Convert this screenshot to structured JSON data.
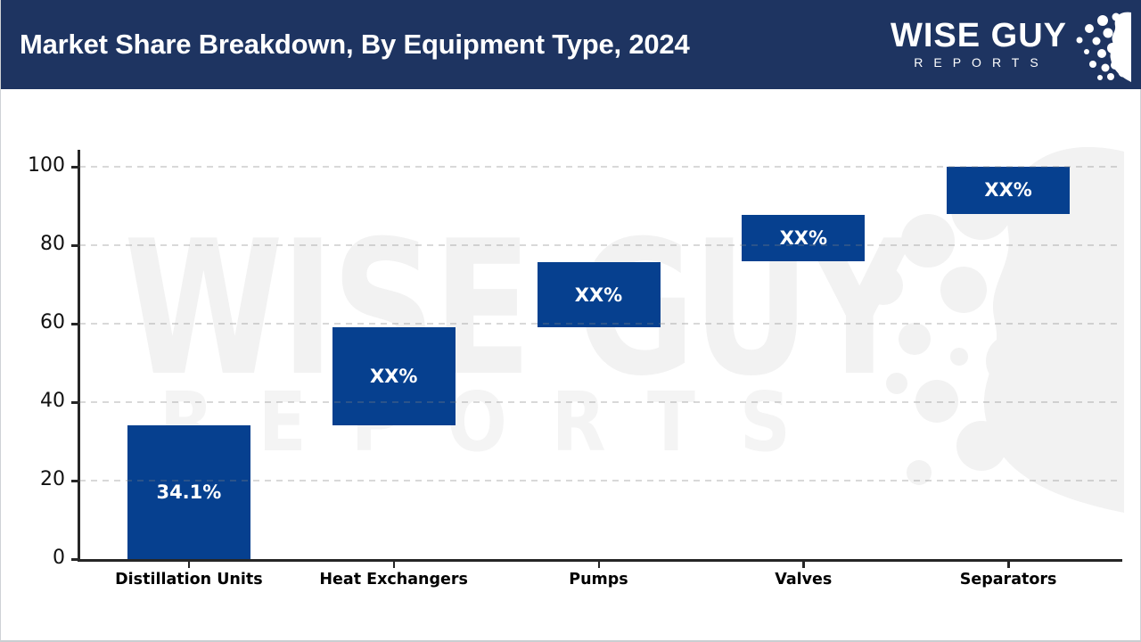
{
  "header": {
    "title": "Market Share Breakdown, By Equipment Type, 2024",
    "bg_color": "#1e3461",
    "logo": {
      "line1": "WISE GUY",
      "line2": "REPORTS"
    }
  },
  "watermark": {
    "line1": "WISE GUY",
    "line2": "REPORTS"
  },
  "chart_data": {
    "type": "bar",
    "subtype": "waterfall",
    "title": "Market Share Breakdown, By Equipment Type, 2024",
    "categories": [
      "Distillation Units",
      "Heat Exchangers",
      "Pumps",
      "Valves",
      "Separators"
    ],
    "segments": [
      {
        "category": "Distillation Units",
        "start": 0,
        "end": 34.1,
        "label": "34.1%"
      },
      {
        "category": "Heat Exchangers",
        "start": 34.1,
        "end": 59.0,
        "label": "XX%"
      },
      {
        "category": "Pumps",
        "start": 59.0,
        "end": 75.7,
        "label": "XX%"
      },
      {
        "category": "Valves",
        "start": 75.9,
        "end": 87.7,
        "label": "XX%"
      },
      {
        "category": "Separators",
        "start": 88.0,
        "end": 100.0,
        "label": "XX%"
      }
    ],
    "y_ticks": [
      0,
      20,
      40,
      60,
      80,
      100
    ],
    "ylim": [
      0,
      105
    ],
    "xlabel": "",
    "ylabel": "",
    "grid": "horizontal-dashed-over-bars",
    "legend": "none",
    "bar_color": "#06408f",
    "bar_label_color": "#ffffff",
    "axis_color": "#262626"
  }
}
